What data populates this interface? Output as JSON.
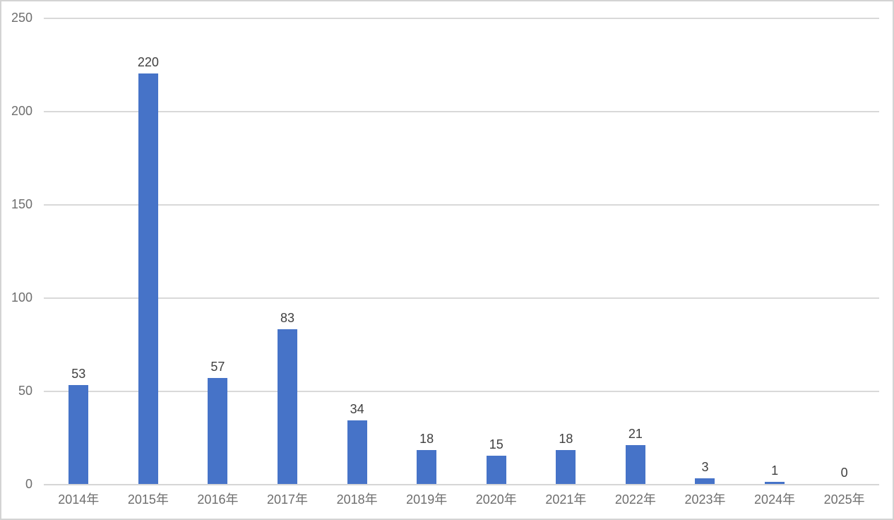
{
  "chart_data": {
    "type": "bar",
    "categories": [
      "2014年",
      "2015年",
      "2016年",
      "2017年",
      "2018年",
      "2019年",
      "2020年",
      "2021年",
      "2022年",
      "2023年",
      "2024年",
      "2025年"
    ],
    "values": [
      53,
      220,
      57,
      83,
      34,
      18,
      15,
      18,
      21,
      3,
      1,
      0
    ],
    "data_labels": [
      "53",
      "220",
      "57",
      "83",
      "34",
      "18",
      "15",
      "18",
      "21",
      "3",
      "1",
      "0"
    ],
    "ylim": [
      0,
      250
    ],
    "yticks": [
      0,
      50,
      100,
      150,
      200,
      250
    ],
    "grid": true,
    "legend": "none",
    "colors": {
      "bar": "#4673c8",
      "gridline": "#d9d9d9",
      "axis_line": "#d6d6d6",
      "tick_label": "#6e6e6e",
      "data_label": "#404040",
      "frame_border": "#d3d3d3",
      "background": "#ffffff"
    }
  }
}
